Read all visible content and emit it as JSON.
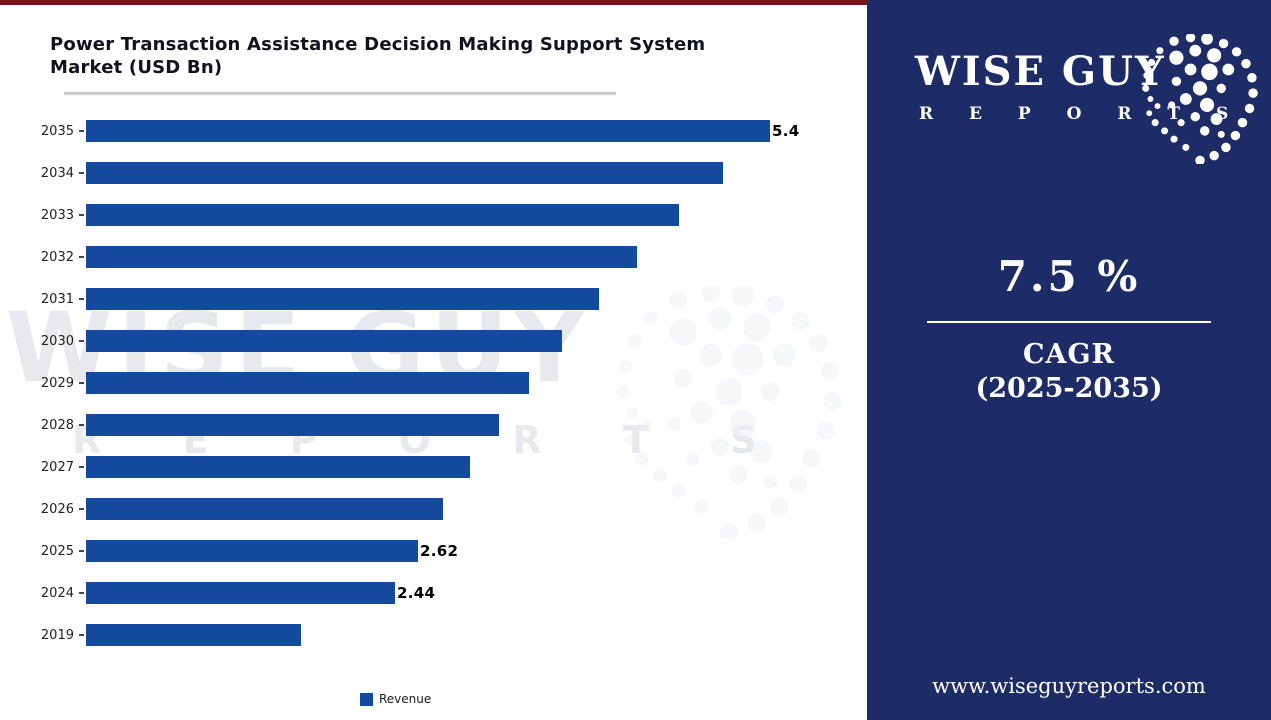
{
  "colors": {
    "bar": "#134a9e",
    "panel_bg": "#1d2c66",
    "top_strip": "#7a1418",
    "title_text": "#11121f",
    "watermark": "#8a93a6"
  },
  "chart": {
    "title_line1": "Power Transaction Assistance Decision Making Support System",
    "title_line2": "Market (USD Bn)",
    "legend_label": "Revenue",
    "watermark_line1": "WISE GUY",
    "watermark_line2": "R E P O R T S"
  },
  "chart_data": {
    "type": "bar",
    "orientation": "horizontal",
    "title": "Power Transaction Assistance Decision Making Support System Market (USD Bn)",
    "xlabel": "",
    "ylabel": "",
    "categories": [
      "2035",
      "2034",
      "2033",
      "2032",
      "2031",
      "2030",
      "2029",
      "2028",
      "2027",
      "2026",
      "2025",
      "2024",
      "2019"
    ],
    "values": [
      5.4,
      5.03,
      4.68,
      4.35,
      4.05,
      3.76,
      3.5,
      3.26,
      3.03,
      2.82,
      2.62,
      2.44,
      1.7
    ],
    "value_labels": [
      "5.4",
      "",
      "",
      "",
      "",
      "",
      "",
      "",
      "",
      "",
      "2.62",
      "2.44",
      ""
    ],
    "xlim": [
      0,
      6
    ],
    "grid": false,
    "legend": [
      "Revenue"
    ],
    "legend_position": "bottom",
    "bar_color": "#134a9e"
  },
  "panel": {
    "logo_line1": "WISE GUY",
    "logo_line2": "R E P O R T S",
    "cagr_value": "7.5 %",
    "cagr_label": "CAGR",
    "cagr_range": "(2025-2035)",
    "website": "www.wiseguyreports.com"
  }
}
